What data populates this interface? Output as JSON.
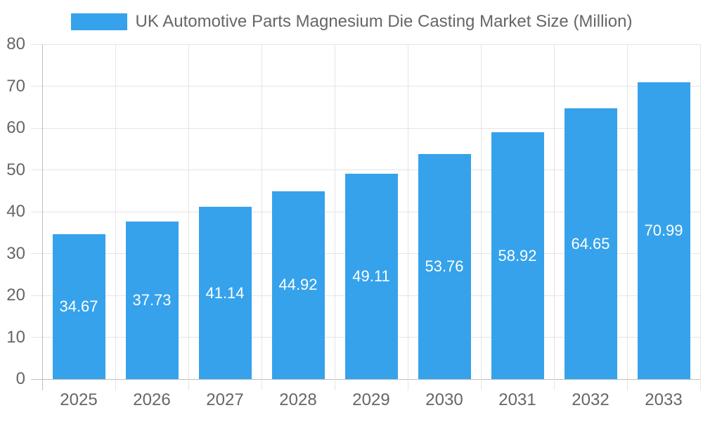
{
  "chart_data": {
    "type": "bar",
    "title": "UK Automotive Parts Magnesium Die Casting Market Size (Million)",
    "series_name": "UK Automotive Parts Magnesium Die Casting Market Size (Million)",
    "categories": [
      "2025",
      "2026",
      "2027",
      "2028",
      "2029",
      "2030",
      "2031",
      "2032",
      "2033"
    ],
    "values": [
      34.67,
      37.73,
      41.14,
      44.92,
      49.11,
      53.76,
      58.92,
      64.65,
      70.99
    ],
    "xlabel": "",
    "ylabel": "",
    "ylim": [
      0,
      80
    ],
    "ytick_step": 10,
    "ytick_labels": [
      "0",
      "10",
      "20",
      "30",
      "40",
      "50",
      "60",
      "70",
      "80"
    ],
    "grid": "on",
    "legend_position": "top",
    "value_label_position": "inside-center",
    "value_label_decimals": 2
  },
  "colors": {
    "bar": "#36A2EB",
    "value_label": "#FFFFFF",
    "axis_text": "#666666",
    "legend_text": "#666666",
    "gridline": "#E5E5E5",
    "axis_line": "#BFBFBF",
    "background": "#FFFFFF"
  }
}
